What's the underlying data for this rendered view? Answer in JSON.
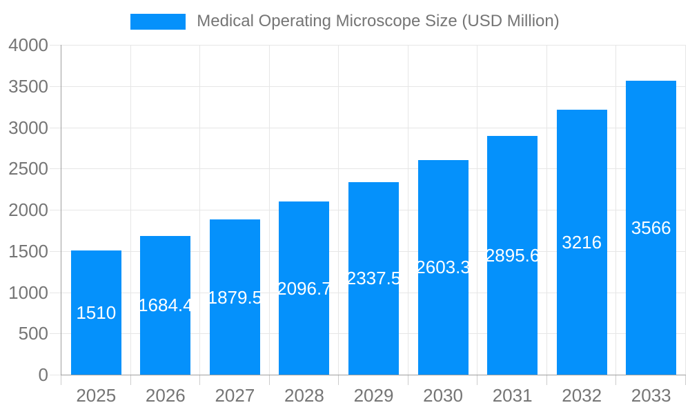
{
  "chart_data": {
    "type": "bar",
    "title": "Medical Operating Microscope Size (USD Million)",
    "categories": [
      "2025",
      "2026",
      "2027",
      "2028",
      "2029",
      "2030",
      "2031",
      "2032",
      "2033"
    ],
    "values": [
      1510,
      1684.4,
      1879.5,
      2096.7,
      2337.5,
      2603.3,
      2895.6,
      3216,
      3566
    ],
    "value_labels": [
      "1510",
      "1684.4",
      "1879.5",
      "2096.7",
      "2337.5",
      "2603.3",
      "2895.6",
      "3216",
      "3566"
    ],
    "xlabel": "",
    "ylabel": "",
    "ylim": [
      0,
      4000
    ],
    "ytick_step": 500,
    "ytick_labels": [
      "0",
      "500",
      "1000",
      "1500",
      "2000",
      "2500",
      "3000",
      "3500",
      "4000"
    ],
    "grid": true,
    "legend_position": "top",
    "colors": {
      "bar": "#0591fb",
      "value_label": "#ffffff",
      "text": "#757575",
      "grid": "#e6e6e6",
      "axis": "#9e9e9e",
      "tick": "#cccccc",
      "background": "#ffffff"
    }
  }
}
